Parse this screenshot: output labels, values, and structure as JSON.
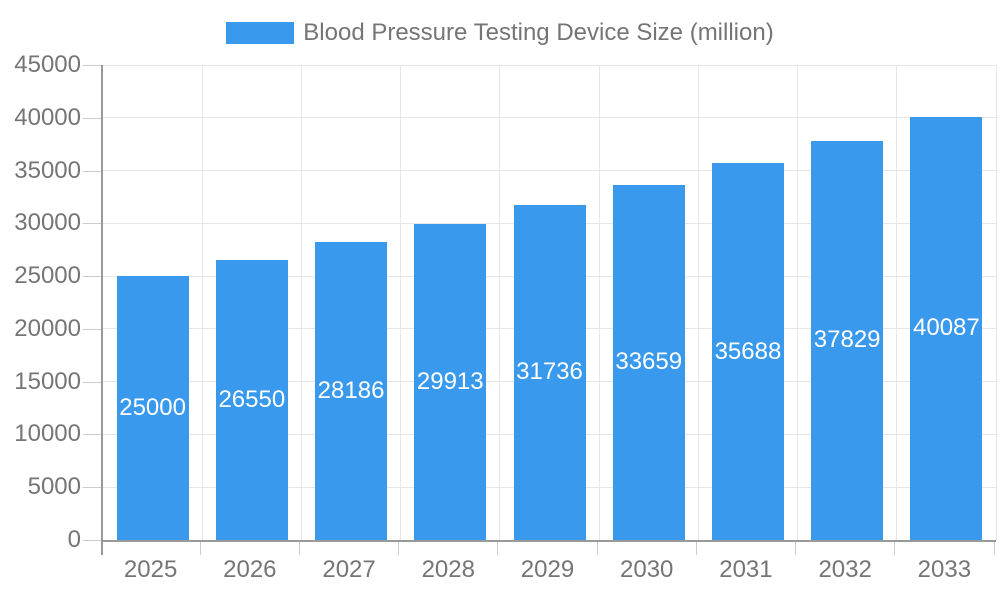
{
  "legend": {
    "label": "Blood Pressure Testing Device Size (million)"
  },
  "chart_data": {
    "type": "bar",
    "title": "Blood Pressure Testing Device Size (million)",
    "series_name": "Blood Pressure Testing Device Size (million)",
    "categories": [
      "2025",
      "2026",
      "2027",
      "2028",
      "2029",
      "2030",
      "2031",
      "2032",
      "2033"
    ],
    "values": [
      25000,
      26550,
      28186,
      29913,
      31736,
      33659,
      35688,
      37829,
      40087
    ],
    "xlabel": "",
    "ylabel": "",
    "ylim": [
      0,
      45000
    ],
    "yticks": [
      0,
      5000,
      10000,
      15000,
      20000,
      25000,
      30000,
      35000,
      40000,
      45000
    ],
    "grid": true,
    "legend_position": "top-center",
    "bar_labels_visible": true,
    "colors": {
      "bar": "#3999ec",
      "bar_label": "#ffffff",
      "axis_line": "#999999",
      "grid_line": "#e6e6e6",
      "tick_line": "#cccccc",
      "text": "#757575",
      "background": "#ffffff"
    }
  }
}
